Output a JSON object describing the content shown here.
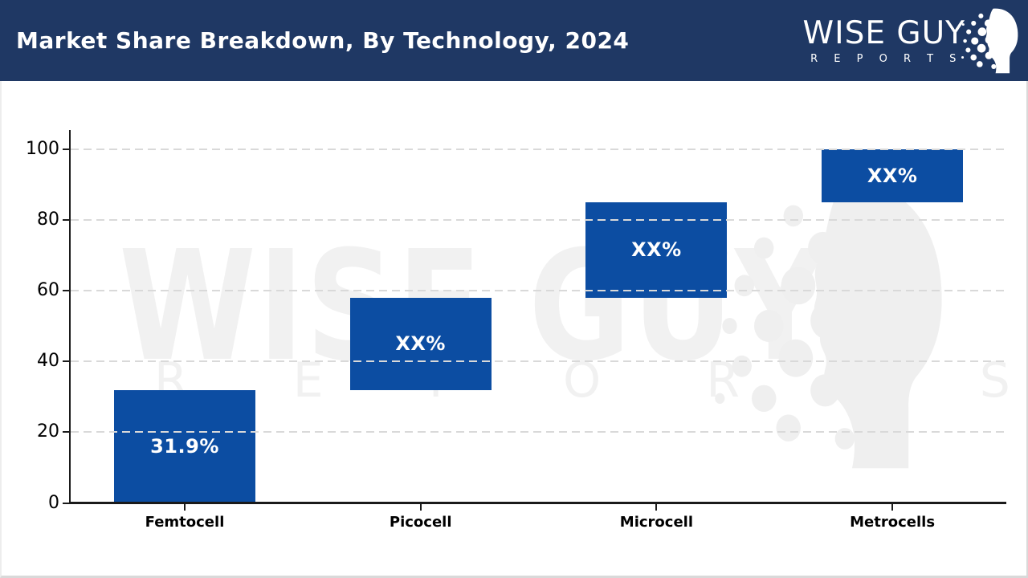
{
  "header": {
    "title": "Market Share Breakdown, By Technology, 2024",
    "logo": {
      "line1": "WISE GUY",
      "line2": "R E P O R T S"
    }
  },
  "watermark": {
    "line1": "WISE GUY",
    "line2": "R E P O R T S"
  },
  "colors": {
    "header_bg": "#1f3864",
    "bar": "#0c4da2",
    "bar_label": "#ffffff",
    "grid": "#d9d9d9",
    "axis": "#1a1a1a",
    "watermark": "#f1f1f1"
  },
  "chart_data": {
    "type": "bar",
    "subtype": "waterfall",
    "title": "Market Share Breakdown, By Technology, 2024",
    "categories": [
      "Femtocell",
      "Picocell",
      "Microcell",
      "Metrocells"
    ],
    "segments": [
      {
        "category": "Femtocell",
        "start": 0,
        "end": 31.9,
        "label": "31.9%"
      },
      {
        "category": "Picocell",
        "start": 31.9,
        "end": 58,
        "label": "XX%"
      },
      {
        "category": "Microcell",
        "start": 58,
        "end": 85,
        "label": "XX%"
      },
      {
        "category": "Metrocells",
        "start": 85,
        "end": 100,
        "label": "XX%"
      }
    ],
    "segment_sizes_pct": [
      31.9,
      26.1,
      27.0,
      15.0
    ],
    "cumulative_tops_pct": [
      31.9,
      58,
      85,
      100
    ],
    "xlabel": "",
    "ylabel": "",
    "ylim": [
      0,
      100
    ],
    "yticks": [
      0,
      20,
      40,
      60,
      80,
      100
    ],
    "grid": "horizontal-dashed",
    "legend": "none"
  }
}
